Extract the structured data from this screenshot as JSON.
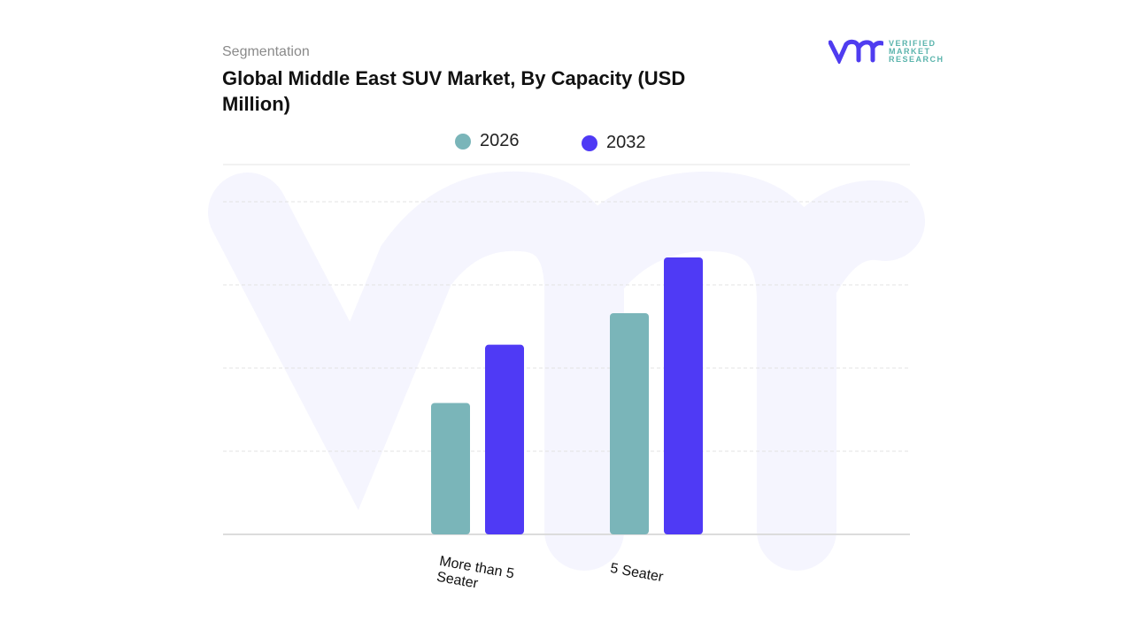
{
  "header": {
    "segment_label": "Segmentation",
    "title": "Global Middle East SUV Market, By Capacity (USD Million)"
  },
  "logo": {
    "line1": "VERIFIED",
    "line2": "MARKET",
    "line3": "RESEARCH",
    "brand_color": "#4f3cf0",
    "text_color": "#5ab4ac"
  },
  "chart_data": {
    "type": "bar",
    "title": "Global Middle East SUV Market, By Capacity (USD Million)",
    "categories": [
      "More than 5 Seater",
      "5 Seater"
    ],
    "series": [
      {
        "name": "2026",
        "color": "#7ab5b9",
        "values": [
          1.58,
          2.66
        ]
      },
      {
        "name": "2032",
        "color": "#4f3af5",
        "values": [
          2.28,
          3.33
        ]
      }
    ],
    "ylim": [
      0,
      4
    ],
    "grid": true,
    "legend": "top-center",
    "xlabel": "",
    "ylabel": ""
  }
}
